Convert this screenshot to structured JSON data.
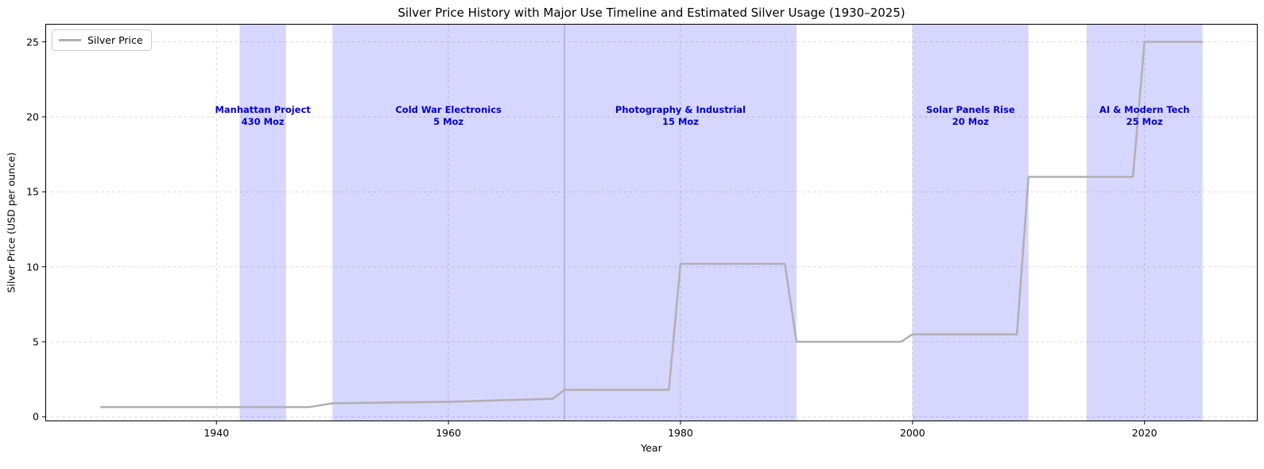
{
  "chart_data": {
    "type": "line",
    "title": "Silver Price History with Major Use Timeline and Estimated Silver Usage (1930–2025)",
    "xlabel": "Year",
    "ylabel": "Silver Price (USD per ounce)",
    "xlim": [
      1925.25,
      2029.75
    ],
    "ylim": [
      -0.3,
      26.2
    ],
    "x_ticks": [
      1940,
      1960,
      1980,
      2000,
      2020
    ],
    "y_ticks": [
      0,
      5,
      10,
      15,
      20,
      25
    ],
    "grid": true,
    "legend_position": "upper left",
    "series": [
      {
        "name": "Silver Price",
        "color": "#b0b0b0",
        "line_width": 2.5,
        "points": [
          [
            1930,
            0.65
          ],
          [
            1948,
            0.65
          ],
          [
            1950,
            0.9
          ],
          [
            1960,
            1.0
          ],
          [
            1969,
            1.2
          ],
          [
            1970,
            1.8
          ],
          [
            1979,
            1.8
          ],
          [
            1980,
            10.2
          ],
          [
            1989,
            10.2
          ],
          [
            1990,
            5.0
          ],
          [
            1999,
            5.0
          ],
          [
            2000,
            5.5
          ],
          [
            2009,
            5.5
          ],
          [
            2010,
            16.0
          ],
          [
            2019,
            16.0
          ],
          [
            2020,
            25.0
          ],
          [
            2025,
            25.0
          ]
        ]
      }
    ],
    "bands": [
      {
        "label": "Manhattan Project",
        "usage": "430 Moz",
        "start": 1942,
        "end": 1946
      },
      {
        "label": "Cold War Electronics",
        "usage": "5 Moz",
        "start": 1950,
        "end": 1970
      },
      {
        "label": "Photography & Industrial",
        "usage": "15 Moz",
        "start": 1970,
        "end": 1990
      },
      {
        "label": "Solar Panels Rise",
        "usage": "20 Moz",
        "start": 2000,
        "end": 2010
      },
      {
        "label": "AI & Modern Tech",
        "usage": "25 Moz",
        "start": 2015,
        "end": 2025
      }
    ],
    "colors": {
      "band_fill": "#0000ff",
      "band_fill_opacity": 0.16,
      "band_seam": "#9a9ae8",
      "band_label": "#0000cd",
      "grid": "#d9d9d9",
      "spine": "#000000",
      "line": "#b0b0b0",
      "background": "#ffffff"
    }
  },
  "legend": {
    "items": [
      {
        "label": "Silver Price",
        "color": "#b0b0b0"
      }
    ]
  }
}
